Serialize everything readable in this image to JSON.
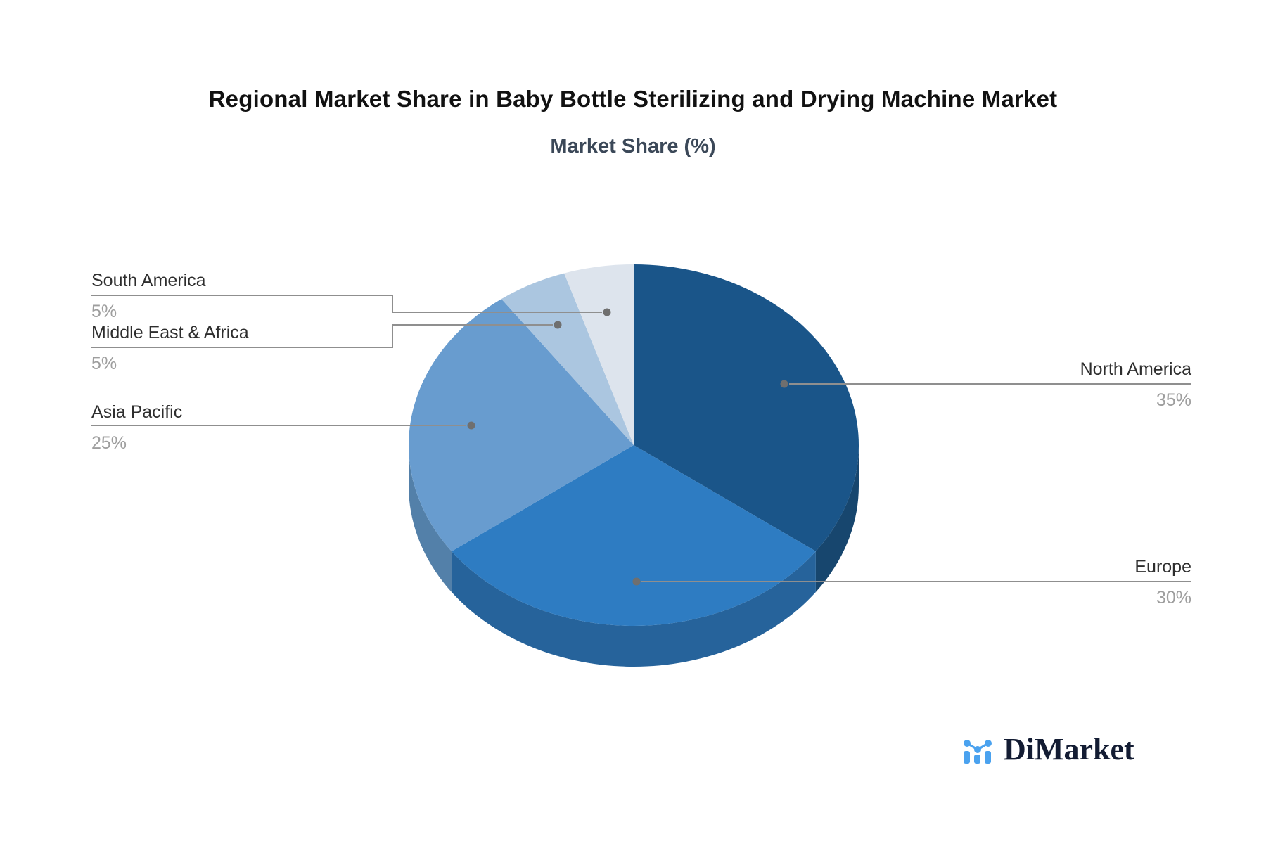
{
  "title": "Regional Market Share in Baby Bottle Sterilizing and Drying Machine Market",
  "subtitle": "Market Share (%)",
  "chart_data": {
    "type": "pie",
    "style": "3d",
    "title": "Regional Market Share in Baby Bottle Sterilizing and Drying Machine Market",
    "unit": "%",
    "start_angle_deg": 0,
    "direction": "clockwise",
    "legend_position": "callout-labels",
    "slices": [
      {
        "label": "North America",
        "value": 35,
        "display": "35%",
        "color": "#1A5589",
        "side_color": "#17466E"
      },
      {
        "label": "Europe",
        "value": 30,
        "display": "30%",
        "color": "#2E7CC2",
        "side_color": "#26639B"
      },
      {
        "label": "Asia Pacific",
        "value": 25,
        "display": "25%",
        "color": "#689CCF",
        "side_color": "#5380A9"
      },
      {
        "label": "Middle East & Africa",
        "value": 5,
        "display": "5%",
        "color": "#ABC6E0",
        "side_color": "#8FA8C2"
      },
      {
        "label": "South America",
        "value": 5,
        "display": "5%",
        "color": "#DDE4ED",
        "side_color": "#B9C3D0"
      }
    ],
    "colors": {
      "leader_line": "#8F8F8F",
      "leader_dot": "#6F6F6F",
      "label_text": "#2E2E2E",
      "percent_text": "#9E9E9E"
    }
  },
  "logo": {
    "text": "DiMarket",
    "icon": "bar-line-chart-icon",
    "text_color": "#131C33",
    "icon_color": "#4AA2EF"
  }
}
